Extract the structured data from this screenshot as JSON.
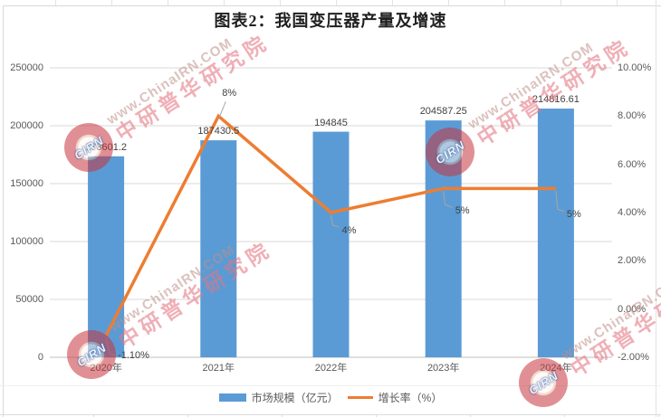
{
  "chart_data": {
    "type": "bar+line combo",
    "title": "图表2：我国变压器产量及增速",
    "categories": [
      "2020年",
      "2021年",
      "2022年",
      "2023年",
      "2024年"
    ],
    "series": [
      {
        "name": "市场规模（亿元）",
        "type": "bar",
        "axis": "left",
        "color": "#5B9BD5",
        "values": [
          173601.2,
          187430.5,
          194845,
          204587.25,
          214816.61
        ],
        "labels": [
          "173601.2",
          "187430.5",
          "194845",
          "204587.25",
          "214816.61"
        ]
      },
      {
        "name": "增长率（%）",
        "type": "line",
        "axis": "right",
        "color": "#ED7D31",
        "values": [
          -1.1,
          8,
          4,
          5,
          5
        ],
        "labels": [
          "-1.10%",
          "8%",
          "4%",
          "5%",
          "5%"
        ]
      }
    ],
    "left_axis": {
      "min": 0,
      "max": 250000,
      "ticks": [
        "0",
        "50000",
        "100000",
        "150000",
        "200000",
        "250000"
      ]
    },
    "right_axis": {
      "min": -2,
      "max": 10,
      "ticks": [
        "-2.00%",
        "0.00%",
        "2.00%",
        "4.00%",
        "6.00%",
        "8.00%",
        "10.00%"
      ]
    },
    "legend": {
      "position": "bottom",
      "entries": [
        "市场规模（亿元）",
        "增长率（%）"
      ]
    },
    "grid": "horizontal",
    "colors": {
      "gridline": "#D9D9D9",
      "axis_line": "#BFBFBF",
      "tick_text": "#595959",
      "data_label": "#404040"
    }
  },
  "watermark": {
    "url_text": "www.ChinaIRN.COM",
    "cn_text": "中研普华研究院",
    "badge_text": "CIRN"
  }
}
